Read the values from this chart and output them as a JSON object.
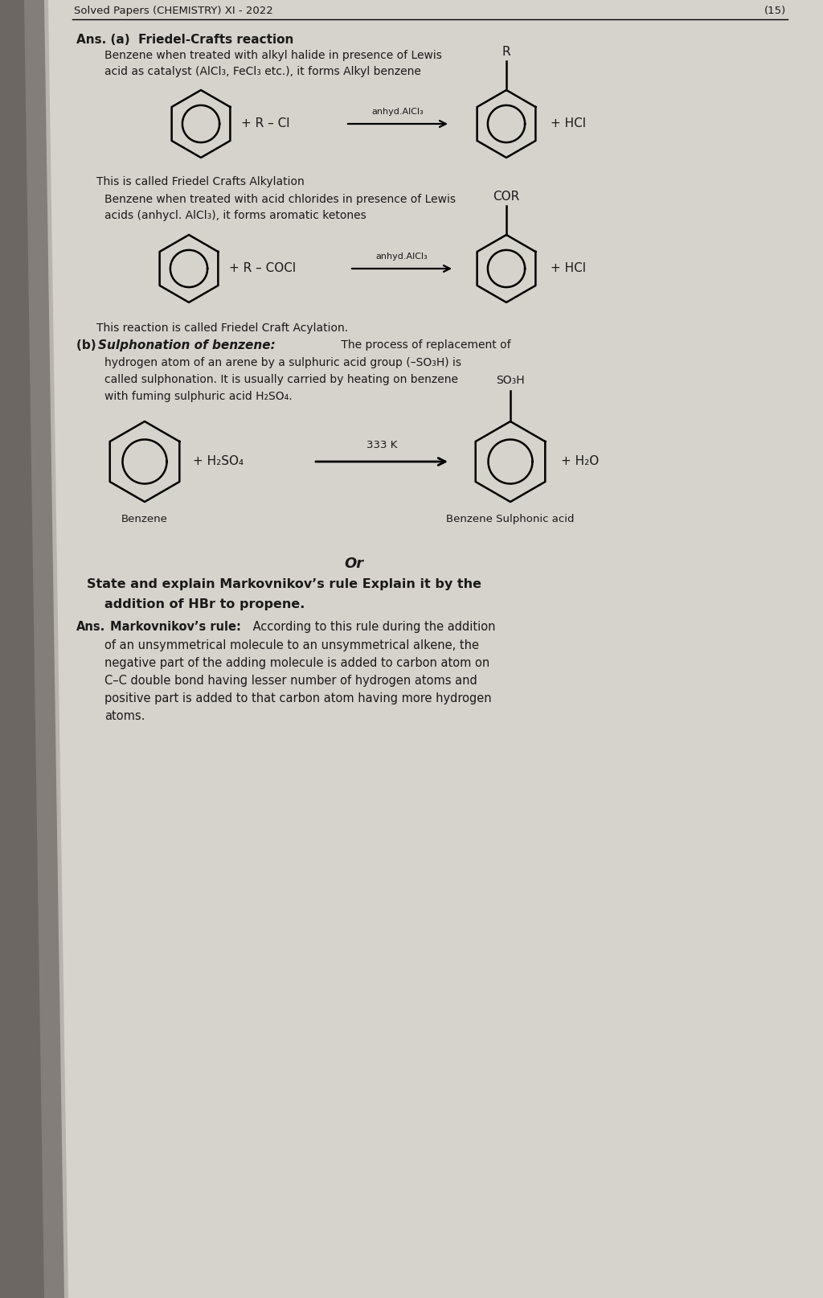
{
  "bg_color": "#c8c4be",
  "page_color": "#d6d2cc",
  "spine_color": "#8a8480",
  "text_color": "#1a1a1a",
  "header_text": "Solved Papers (CHEMISTRY) XI - 2022",
  "header_right": "(15)",
  "title_q": "Ans. (a)  Friedel-Crafts reaction",
  "para1_l1": "Benzene when treated with alkyl halide in presence of Lewis",
  "para1_l2": "acid as catalyst (AlCl₃, FeCl₃ etc.), it forms Alkyl benzene",
  "rxn1_arrow_label": "anhyd.AlCl₃",
  "rxn1_R": "R",
  "friedel_alkylation": "This is called Friedel Crafts Alkylation",
  "para2_l1": "Benzene when treated with acid chlorides in presence of Lewis",
  "para2_l2": "acids (anhycl. AlCl₃), it forms aromatic ketones",
  "rxn2_arrow_label": "anhyd.AlCl₃",
  "rxn2_COR": "COR",
  "friedel_acylation": "This reaction is called Friedel Craft Acylation.",
  "b_label": "(b) ",
  "b_sulph": "Sulphonation of benzene:",
  "b_text1": " The process of replacement of",
  "b_text2": "hydrogen atom of an arene by a sulphuric acid group (–SO₃H) is",
  "b_text3": "called sulphonation. It is usually carried by heating on benzene",
  "b_text4": "with fuming sulphuric acid H₂SO₄.",
  "rxn3_arrow_label": "333 K",
  "rxn3_SO3H": "SO₃H",
  "rxn3_label_left": "Benzene",
  "rxn3_label_right": "Benzene Sulphonic acid",
  "or_text": "Or",
  "q2_l1": "State and explain Markovnikov’s rule Explain it by the",
  "q2_l2": "addition of HBr to propene.",
  "ans2_bold": "Markovnikov’s rule:",
  "ans2_l1": " According to this rule during the addition",
  "ans2_l2": "of an unsymmetrical molecule to an unsymmetrical alkene, the",
  "ans2_l3": "negative part of the adding molecule is added to carbon atom on",
  "ans2_l4": "C–C double bond having lesser number of hydrogen atoms and",
  "ans2_l5": "positive part is added to that carbon atom having more hydrogen",
  "ans2_l6": "atoms."
}
